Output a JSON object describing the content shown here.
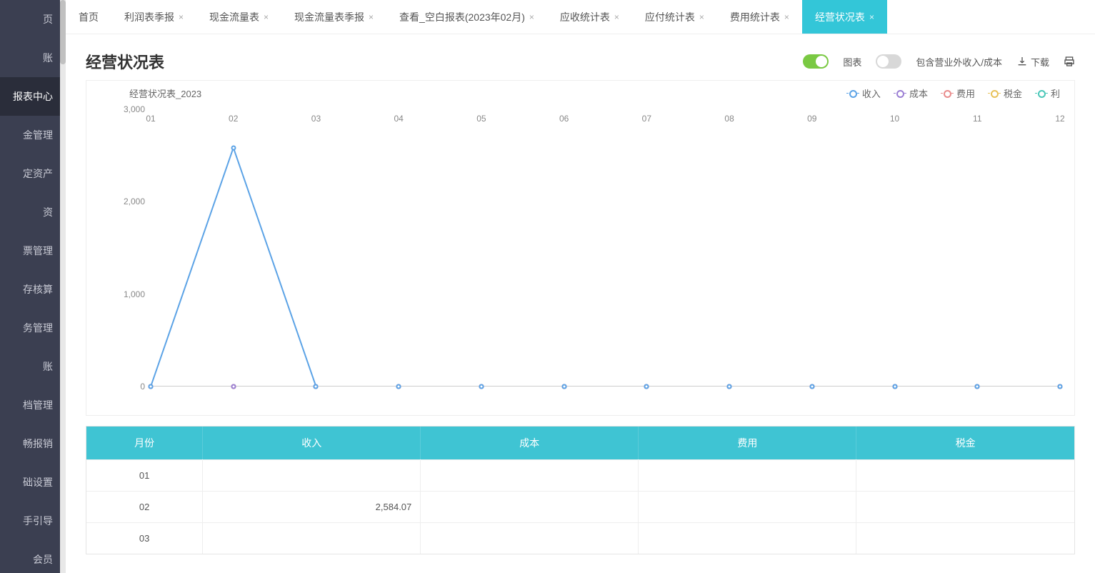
{
  "sidebar": {
    "items": [
      {
        "label": "页"
      },
      {
        "label": "账"
      },
      {
        "label": "报表中心",
        "active": true
      },
      {
        "label": "金管理"
      },
      {
        "label": "定资产"
      },
      {
        "label": "资"
      },
      {
        "label": "票管理"
      },
      {
        "label": "存核算"
      },
      {
        "label": "务管理"
      },
      {
        "label": "账"
      },
      {
        "label": "档管理"
      },
      {
        "label": "畅报销"
      },
      {
        "label": "础设置"
      },
      {
        "label": "手引导"
      },
      {
        "label": "会员"
      }
    ]
  },
  "tabs": {
    "items": [
      {
        "label": "首页",
        "closable": false
      },
      {
        "label": "利润表季报",
        "closable": true
      },
      {
        "label": "现金流量表",
        "closable": true
      },
      {
        "label": "现金流量表季报",
        "closable": true
      },
      {
        "label": "查看_空白报表(2023年02月)",
        "closable": true
      },
      {
        "label": "应收统计表",
        "closable": true
      },
      {
        "label": "应付统计表",
        "closable": true
      },
      {
        "label": "费用统计表",
        "closable": true
      },
      {
        "label": "经营状况表",
        "closable": true,
        "active": true
      }
    ]
  },
  "header": {
    "title": "经营状况表",
    "toggle_chart": {
      "on": true,
      "label": "图表"
    },
    "toggle_extra": {
      "on": false,
      "label": "包含营业外收入/成本"
    },
    "download_label": "下载"
  },
  "chart": {
    "title": "经营状况表_2023",
    "type": "line",
    "x_categories": [
      "01",
      "02",
      "03",
      "04",
      "05",
      "06",
      "07",
      "08",
      "09",
      "10",
      "11",
      "12"
    ],
    "y_ticks": [
      0,
      1000,
      2000,
      3000
    ],
    "y_tick_labels": [
      "0",
      "1,000",
      "2,000",
      "3,000"
    ],
    "ylim": [
      0,
      3000
    ],
    "grid_color": "#eeeeee",
    "axis_color": "#cccccc",
    "label_color": "#888888",
    "label_fontsize": 12,
    "title_fontsize": 13,
    "series": [
      {
        "name": "收入",
        "color": "#5ca3e6",
        "values": [
          0,
          2584.07,
          0,
          0,
          0,
          0,
          0,
          0,
          0,
          0,
          0,
          0
        ]
      },
      {
        "name": "成本",
        "color": "#9b7fd4",
        "values": [
          0,
          0,
          0,
          0,
          0,
          0,
          0,
          0,
          0,
          0,
          0,
          0
        ]
      },
      {
        "name": "费用",
        "color": "#e98b8b",
        "values": [
          0,
          0,
          0,
          0,
          0,
          0,
          0,
          0,
          0,
          0,
          0,
          0
        ]
      },
      {
        "name": "税金",
        "color": "#e8c25a",
        "values": [
          0,
          0,
          0,
          0,
          0,
          0,
          0,
          0,
          0,
          0,
          0,
          0
        ]
      },
      {
        "name": "利",
        "color": "#4ac7b8",
        "values": [
          0,
          0,
          0,
          0,
          0,
          0,
          0,
          0,
          0,
          0,
          0,
          0
        ]
      }
    ]
  },
  "table": {
    "columns": [
      "月份",
      "收入",
      "成本",
      "费用",
      "税金"
    ],
    "col_widths": [
      "160px",
      "300px",
      "300px",
      "300px",
      "300px"
    ],
    "header_bg": "#3fc4d3",
    "header_fg": "#ffffff",
    "rows": [
      {
        "month": "01",
        "income": "",
        "cost": "",
        "expense": "",
        "tax": ""
      },
      {
        "month": "02",
        "income": "2,584.07",
        "cost": "",
        "expense": "",
        "tax": ""
      },
      {
        "month": "03",
        "income": "",
        "cost": "",
        "expense": "",
        "tax": ""
      }
    ]
  }
}
